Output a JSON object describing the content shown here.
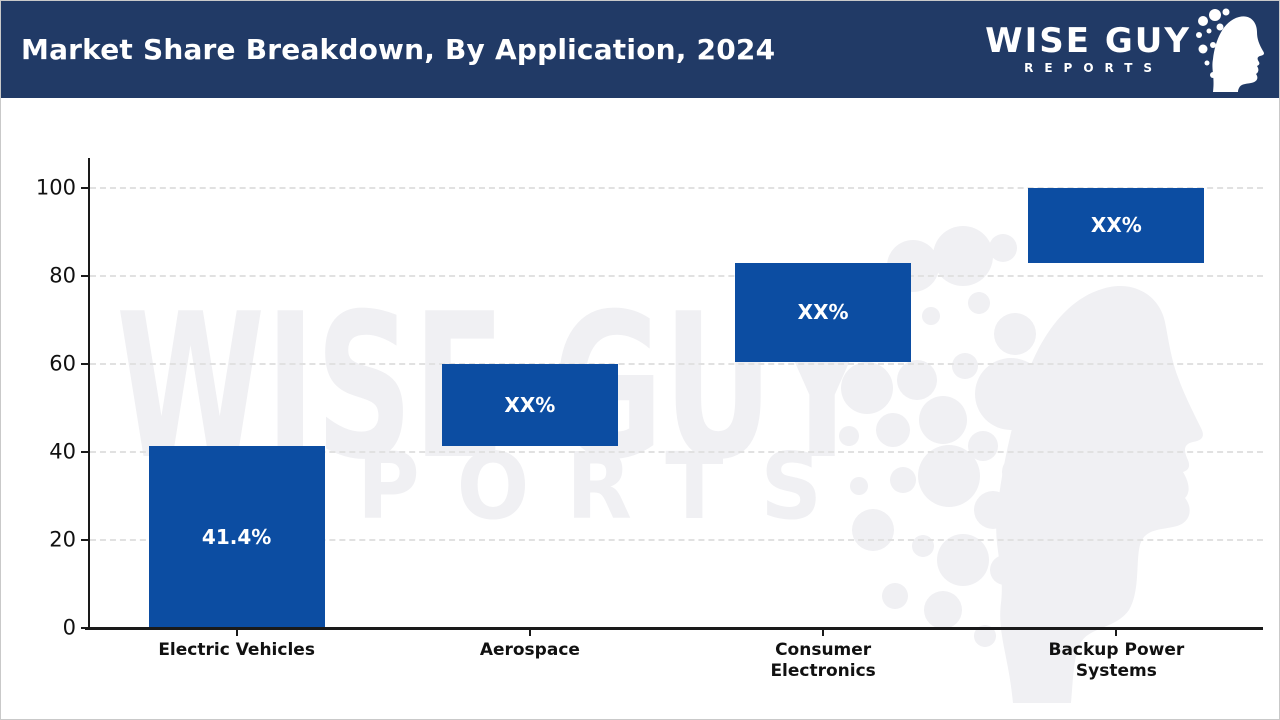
{
  "header": {
    "title": "Market Share Breakdown, By Application, 2024",
    "logo": {
      "line1": "WISE GUY",
      "line2": "REPORTS"
    }
  },
  "watermark": {
    "line1": "WISE GUY",
    "line2": "REPORTS"
  },
  "chart_data": {
    "type": "bar",
    "subtype": "waterfall",
    "title": "Market Share Breakdown, By Application, 2024",
    "categories": [
      "Electric Vehicles",
      "Aerospace",
      "Consumer\nElectronics",
      "Backup Power\nSystems"
    ],
    "segments": [
      {
        "category": "Electric Vehicles",
        "start": 0,
        "end": 41.4,
        "label": "41.4%"
      },
      {
        "category": "Aerospace",
        "start": 41.4,
        "end": 60.0,
        "label": "XX%"
      },
      {
        "category": "Consumer Electronics",
        "start": 60.5,
        "end": 83.0,
        "label": "XX%"
      },
      {
        "category": "Backup Power Systems",
        "start": 83.0,
        "end": 100.0,
        "label": "XX%"
      }
    ],
    "y_ticks": [
      0,
      20,
      40,
      60,
      80,
      100
    ],
    "ylim": [
      0,
      105
    ],
    "grid": "dashed-horizontal",
    "legend": "none",
    "bar_color": "#0C4DA2",
    "bar_label_color": "#FFFFFF",
    "axis_color": "#1a1a1a"
  },
  "colors": {
    "header_bg": "#213A66",
    "accent_blue": "#0C4DA2",
    "watermark_gray": "#F0F0F3",
    "gridline_gray": "#E1E1E1",
    "page_border": "#C9C9C9"
  }
}
